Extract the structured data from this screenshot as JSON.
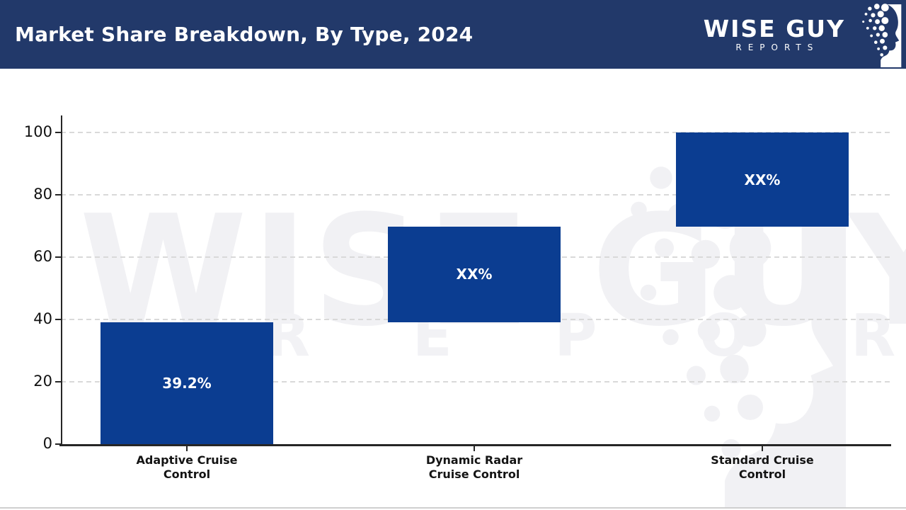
{
  "header": {
    "title": "Market Share Breakdown, By Type, 2024",
    "bg_color": "#22396a",
    "logo": {
      "line1": "WISE GUY",
      "line2": "REPORTS",
      "icon": "face-profile-dots-icon"
    }
  },
  "watermark": {
    "line1": "WISE GUY",
    "line2": "R E P O R T S",
    "icon": "face-profile-dots-icon",
    "color": "#f1f1f4"
  },
  "chart_data": {
    "type": "bar",
    "subtype": "waterfall",
    "title": "Market Share Breakdown, By Type, 2024",
    "xlabel": "",
    "ylabel": "",
    "ylim": [
      0,
      100
    ],
    "yticks": [
      0,
      20,
      40,
      60,
      80,
      100
    ],
    "grid": "horizontal-dashed",
    "bar_color": "#0b3d91",
    "value_label_color": "#ffffff",
    "categories": [
      [
        "Adaptive Cruise",
        "Control"
      ],
      [
        "Dynamic Radar",
        "Cruise Control"
      ],
      [
        "Standard Cruise",
        "Control"
      ]
    ],
    "segments": [
      {
        "category": "Adaptive Cruise Control",
        "start": 0,
        "end": 39.2,
        "value_label": "39.2%"
      },
      {
        "category": "Dynamic Radar Cruise Control",
        "start": 39.2,
        "end": 69.7,
        "value_label": "XX%"
      },
      {
        "category": "Standard Cruise Control",
        "start": 69.7,
        "end": 100,
        "value_label": "XX%"
      }
    ]
  }
}
